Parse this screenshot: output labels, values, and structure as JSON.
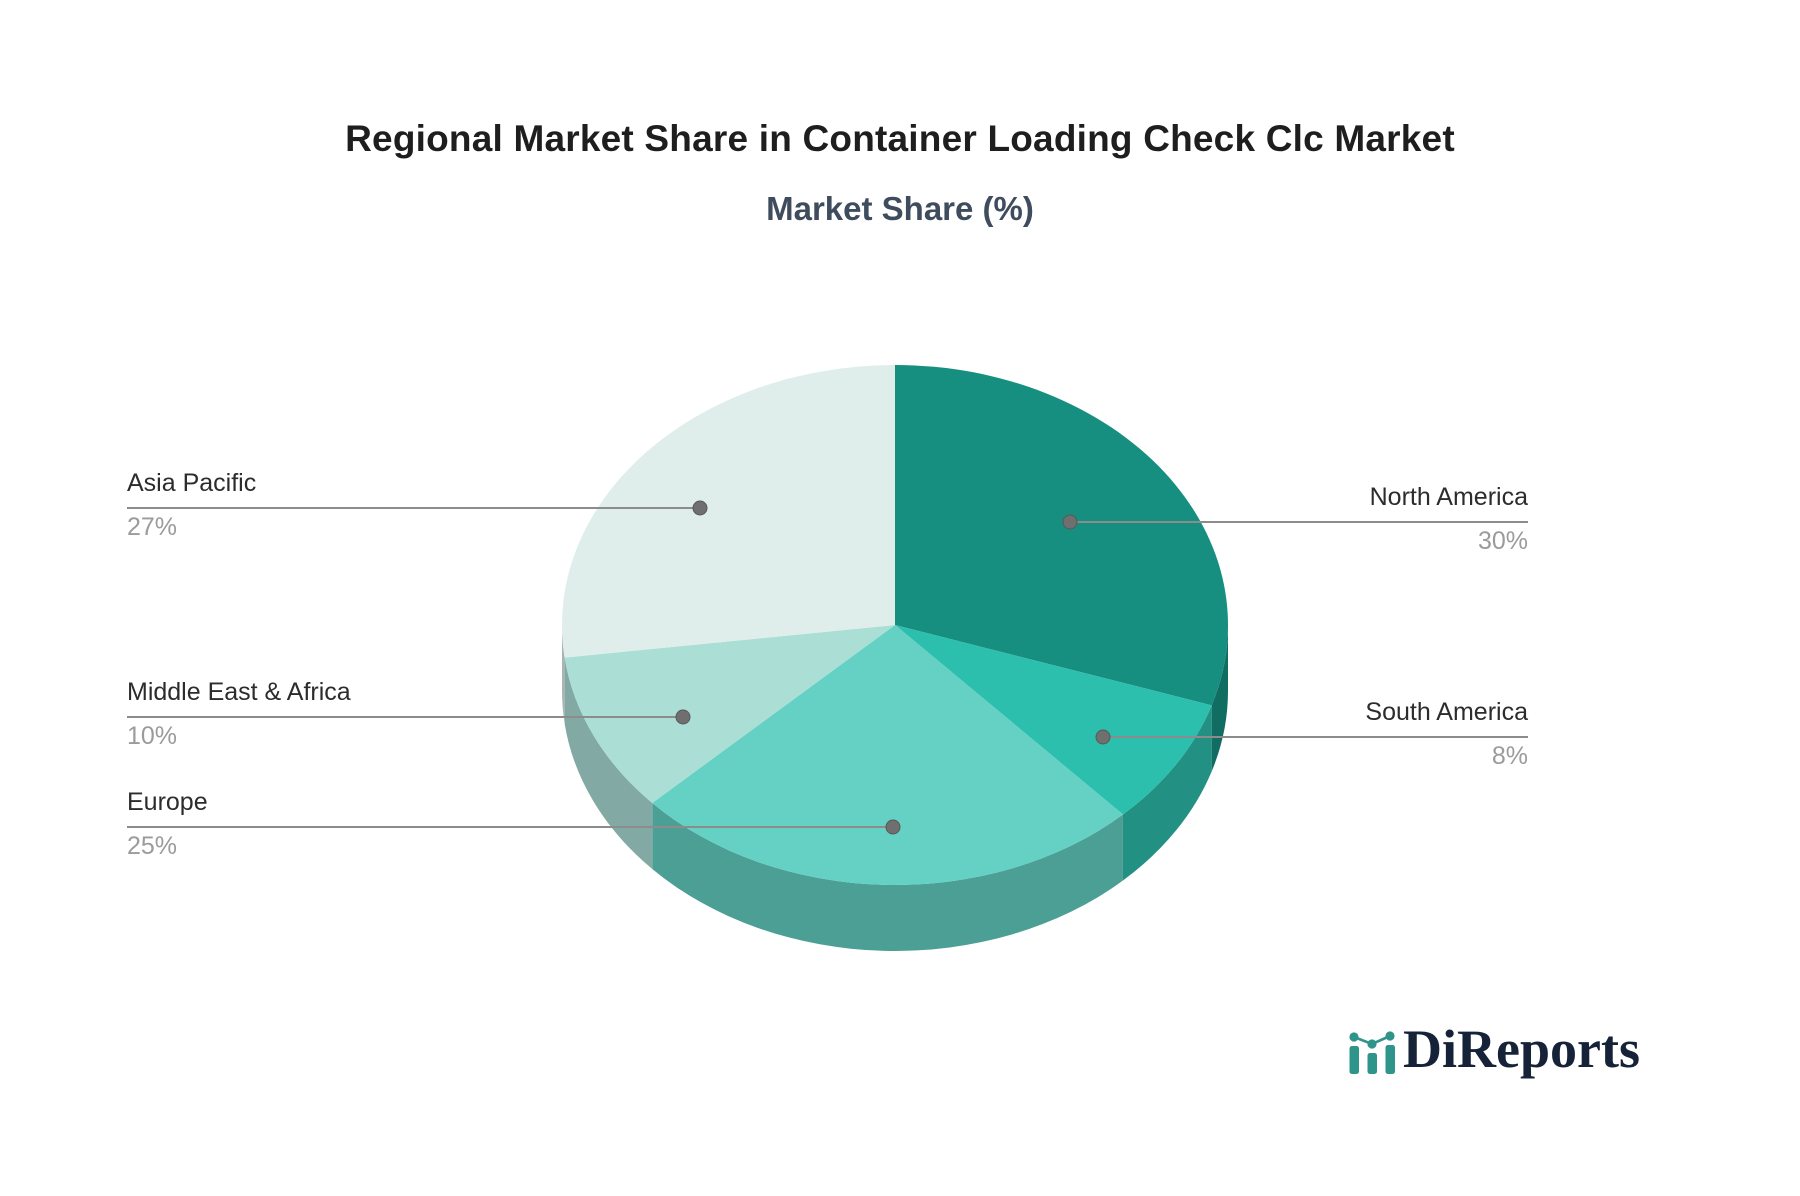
{
  "title": "Regional Market Share in Container Loading Check Clc Market",
  "subtitle": "Market Share (%)",
  "logo": {
    "text": "DiReports",
    "icon": "bar-chart-logo-icon"
  },
  "chart_data": {
    "type": "pie",
    "style": "3d",
    "title": "Regional Market Share in Container Loading Check Clc Market",
    "subtitle": "Market Share (%)",
    "unit": "%",
    "start": "top",
    "direction": "clockwise",
    "legend_position": "callout-labels",
    "labels": [
      "North America",
      "South America",
      "Europe",
      "Middle East & Africa",
      "Asia Pacific"
    ],
    "values": [
      30,
      8,
      25,
      10,
      27
    ],
    "value_labels": [
      "30%",
      "8%",
      "25%",
      "10%",
      "27%"
    ],
    "colors": [
      "#178f80",
      "#2dbfae",
      "#64d1c4",
      "#abdfd6",
      "#e0eeeb"
    ],
    "leader_line_color": "#8c8c8c",
    "leader_dot_color": "#6f6f6f",
    "label_text_color": "#2c2c2c",
    "value_text_color": "#9b9b9b"
  }
}
